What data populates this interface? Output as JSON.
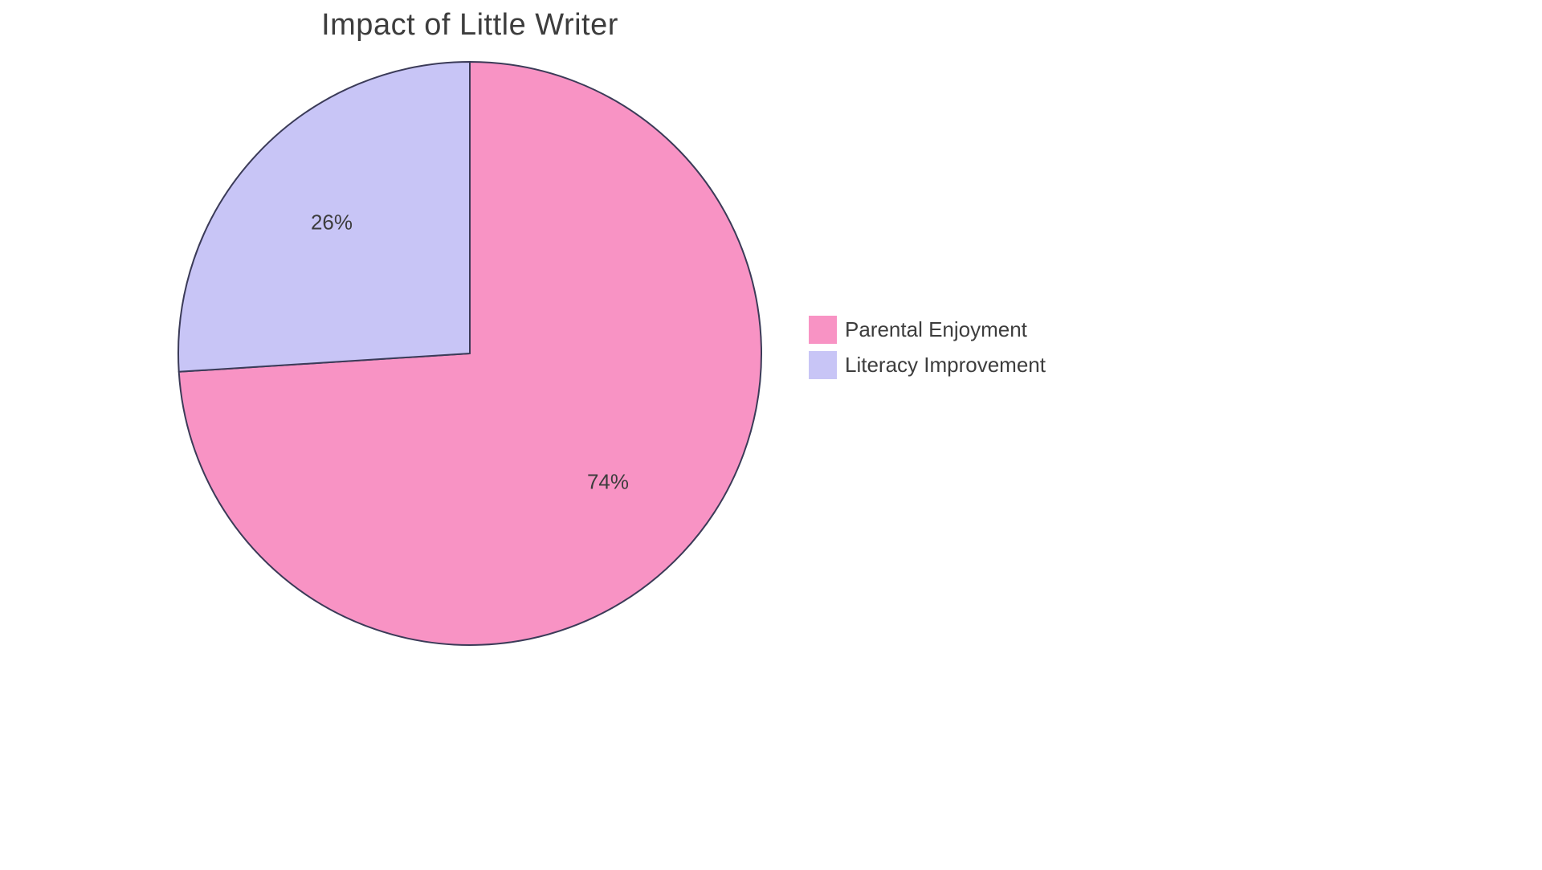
{
  "chart_data": {
    "type": "pie",
    "title": "Impact of Little Writer",
    "labels": [
      "Parental Enjoyment",
      "Literacy Improvement"
    ],
    "values": [
      74,
      26
    ],
    "percent_labels": [
      "74%",
      "26%"
    ],
    "colors": [
      "#F893C4",
      "#C8C5F6"
    ],
    "slice_border_color": "#3B3B58",
    "slice_border_width": 2,
    "start_angle_deg": 0,
    "direction": "clockwise",
    "legend_position": "right",
    "background_color": "#FFFFFF"
  }
}
